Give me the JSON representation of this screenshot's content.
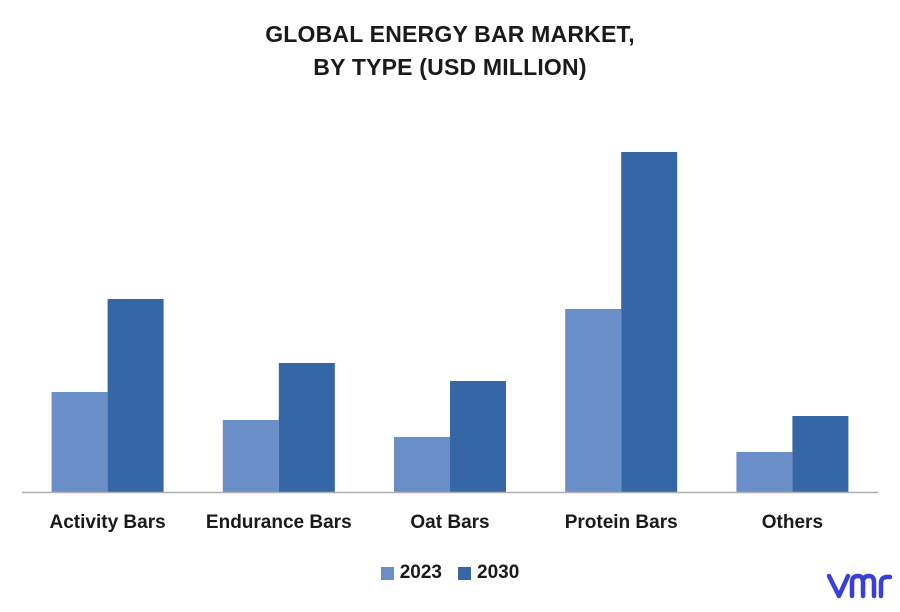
{
  "title_line1": "GLOBAL ENERGY BAR MARKET,",
  "title_line2": "BY TYPE (USD MILLION)",
  "logo": {
    "text": "vmr",
    "color": "#3a3fd8"
  },
  "colors": {
    "2023": "#6a8fc8",
    "2030": "#3566a6",
    "axis": "#b0b0b0"
  },
  "chart_data": {
    "type": "bar",
    "title": "GLOBAL ENERGY BAR MARKET, BY TYPE (USD MILLION)",
    "categories": [
      "Activity Bars",
      "Endurance Bars",
      "Oat Bars",
      "Protein Bars",
      "Others"
    ],
    "series": [
      {
        "name": "2023",
        "values": [
          100,
          72,
          55,
          183,
          40
        ]
      },
      {
        "name": "2030",
        "values": [
          193,
          129,
          111,
          340,
          76
        ]
      }
    ],
    "ylim": [
      0,
      400
    ],
    "grid": false,
    "legend": "bottom-center",
    "xlabel": "",
    "ylabel": ""
  }
}
